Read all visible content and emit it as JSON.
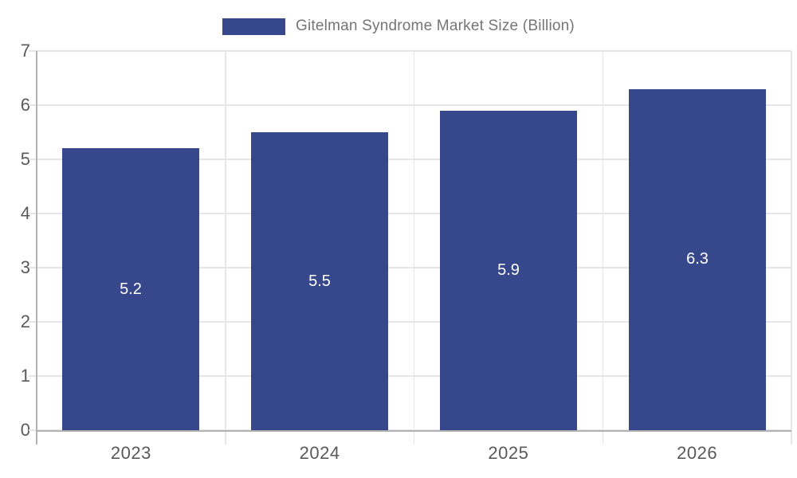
{
  "chart_data": {
    "type": "bar",
    "legend_label": "Gitelman Syndrome Market Size (Billion)",
    "categories": [
      "2023",
      "2024",
      "2025",
      "2026"
    ],
    "values": [
      5.2,
      5.5,
      5.9,
      6.3
    ],
    "value_labels": [
      "5.2",
      "5.5",
      "5.9",
      "6.3"
    ],
    "ylim": [
      0,
      7
    ],
    "yticks": [
      0,
      1,
      2,
      3,
      4,
      5,
      6,
      7
    ],
    "grid": true,
    "legend_position": "top-center",
    "colors": {
      "bar": "#36478B",
      "grid": "#e6e6ea",
      "axis": "#b3b3b3",
      "tick_label": "#595959",
      "legend_text": "#757575",
      "value_label": "#ffffff",
      "background": "#ffffff"
    }
  }
}
